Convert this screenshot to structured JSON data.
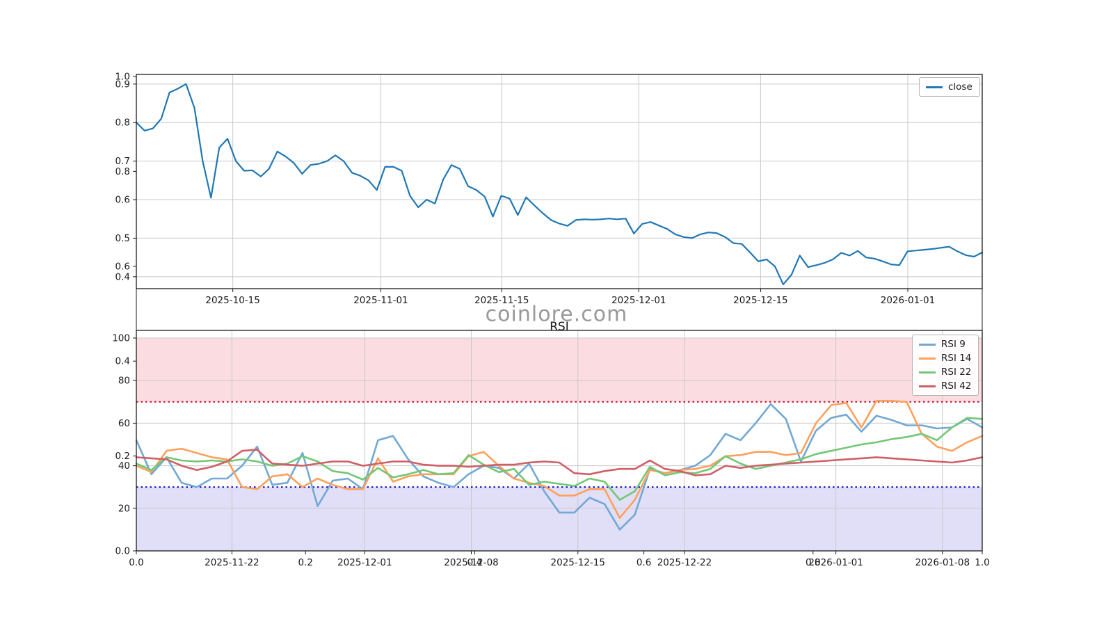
{
  "watermark": "coinlore.com",
  "panels": {
    "price": {
      "legend": [
        {
          "label": "close",
          "color": "#1f77b4"
        }
      ],
      "y_ticks": [
        {
          "label": "0.9",
          "v": 0.9
        },
        {
          "label": "0.8",
          "v": 0.8
        },
        {
          "label": "0.7",
          "v": 0.7
        },
        {
          "label": "0.6",
          "v": 0.6
        },
        {
          "label": "0.5",
          "v": 0.5
        },
        {
          "label": "0.4",
          "v": 0.4
        }
      ],
      "x_ticks": [
        {
          "label": "2025-10-15",
          "f": 0.114
        },
        {
          "label": "2025-11-01",
          "f": 0.289
        },
        {
          "label": "2025-11-15",
          "f": 0.432
        },
        {
          "label": "2025-12-01",
          "f": 0.594
        },
        {
          "label": "2025-12-15",
          "f": 0.738
        },
        {
          "label": "2026-01-01",
          "f": 0.912
        }
      ]
    },
    "rsi": {
      "title": "RSI",
      "legend": [
        {
          "label": "RSI 9",
          "color": "#71a8d4"
        },
        {
          "label": "RSI 14",
          "color": "#ffa05b"
        },
        {
          "label": "RSI 22",
          "color": "#72c775"
        },
        {
          "label": "RSI 42",
          "color": "#cf5f66"
        }
      ],
      "y_ticks": [
        {
          "label": "100",
          "v": 100
        },
        {
          "label": "80",
          "v": 80
        },
        {
          "label": "60",
          "v": 60
        },
        {
          "label": "40",
          "v": 40
        },
        {
          "label": "20",
          "v": 20
        }
      ],
      "x_ticks": [
        {
          "label": "2025-11-22",
          "f": 0.113
        },
        {
          "label": "2025-12-01",
          "f": 0.27
        },
        {
          "label": "2025-12-08",
          "f": 0.396
        },
        {
          "label": "2025-12-15",
          "f": 0.522
        },
        {
          "label": "2025-12-22",
          "f": 0.648
        },
        {
          "label": "2026-01-01",
          "f": 0.827
        },
        {
          "label": "2026-01-08",
          "f": 0.953
        }
      ]
    },
    "overlay": {
      "y_ticks": [
        "1.0",
        "0.8",
        "0.6",
        "0.4",
        "0.2",
        "0.0"
      ],
      "x_ticks": [
        "0.0",
        "0.2",
        "0.4",
        "0.6",
        "0.8",
        "1.0"
      ]
    }
  },
  "chart_data": [
    {
      "type": "line",
      "panel": "price",
      "ylabel": "",
      "ylim": [
        0.369,
        0.925
      ],
      "grid": true,
      "legend_position": "upper right",
      "series": [
        {
          "name": "close",
          "color": "#1f77b4",
          "width": 2.2,
          "values": [
            0.8,
            0.779,
            0.785,
            0.81,
            0.878,
            0.888,
            0.9,
            0.838,
            0.7,
            0.605,
            0.735,
            0.758,
            0.7,
            0.675,
            0.676,
            0.66,
            0.68,
            0.725,
            0.712,
            0.695,
            0.667,
            0.69,
            0.693,
            0.7,
            0.715,
            0.7,
            0.67,
            0.662,
            0.65,
            0.625,
            0.685,
            0.685,
            0.675,
            0.61,
            0.58,
            0.6,
            0.59,
            0.652,
            0.69,
            0.68,
            0.635,
            0.625,
            0.608,
            0.556,
            0.61,
            0.603,
            0.56,
            0.606,
            0.585,
            0.565,
            0.547,
            0.538,
            0.532,
            0.547,
            0.549,
            0.548,
            0.549,
            0.551,
            0.549,
            0.551,
            0.512,
            0.537,
            0.542,
            0.533,
            0.524,
            0.51,
            0.503,
            0.5,
            0.51,
            0.515,
            0.513,
            0.503,
            0.487,
            0.485,
            0.463,
            0.44,
            0.445,
            0.427,
            0.38,
            0.405,
            0.455,
            0.425,
            0.43,
            0.436,
            0.445,
            0.462,
            0.455,
            0.467,
            0.45,
            0.447,
            0.44,
            0.432,
            0.43,
            0.466,
            0.468,
            0.47,
            0.472,
            0.475,
            0.478,
            0.466,
            0.456,
            0.452,
            0.463
          ]
        }
      ]
    },
    {
      "type": "line",
      "panel": "rsi",
      "title": "RSI",
      "ylim": [
        0,
        103.6
      ],
      "grid": true,
      "legend_position": "upper right",
      "bands": [
        {
          "from": 70,
          "to": 100,
          "color": "#fbdce0"
        },
        {
          "from": 0,
          "to": 30,
          "color": "#e0dff7"
        }
      ],
      "hlines": [
        {
          "v": 70,
          "color": "#cc0022",
          "style": "dotted"
        },
        {
          "v": 30,
          "color": "#0000cc",
          "style": "dotted"
        }
      ],
      "series": [
        {
          "name": "RSI 9",
          "color": "#71a8d4",
          "width": 2.6,
          "values": [
            52,
            36,
            44,
            32,
            30,
            34,
            34,
            40,
            49,
            31,
            32,
            46,
            21,
            33,
            34,
            29,
            52,
            54,
            43,
            35,
            32,
            30,
            36,
            40,
            39,
            34,
            41,
            28,
            18,
            18,
            25,
            22,
            10,
            17,
            38.5,
            36.5,
            38,
            40,
            45,
            55,
            52,
            60,
            69,
            62,
            42,
            56.5,
            62.5,
            64,
            56,
            63.5,
            61.5,
            59,
            59,
            57.5,
            58,
            62,
            58
          ]
        },
        {
          "name": "RSI 14",
          "color": "#ffa05b",
          "width": 2.6,
          "values": [
            40,
            37,
            47,
            48,
            46,
            44,
            43,
            30,
            29,
            35,
            36,
            30,
            34,
            31,
            29,
            29,
            43.5,
            32.5,
            35,
            36,
            36,
            36,
            44.5,
            46.5,
            40,
            34,
            32,
            30.5,
            26,
            26,
            29,
            29,
            15.5,
            24,
            38,
            36.5,
            38,
            38.5,
            40,
            44.5,
            45,
            46.5,
            46.5,
            45,
            46,
            60,
            68.5,
            69.5,
            58,
            70.5,
            70.5,
            70,
            55,
            49,
            47,
            51,
            54
          ]
        },
        {
          "name": "RSI 22",
          "color": "#72c775",
          "width": 2.6,
          "values": [
            41,
            38,
            44,
            42.5,
            42,
            42.5,
            42,
            43,
            42,
            40,
            41,
            44.5,
            42,
            37.5,
            36.5,
            33.5,
            39,
            34.5,
            36,
            38,
            36,
            36.5,
            45,
            40.5,
            37,
            38.5,
            31,
            32.5,
            31.5,
            30.5,
            34,
            32.5,
            24,
            28,
            39.5,
            35.5,
            37,
            36.5,
            38.5,
            44.5,
            41,
            38.5,
            40,
            41.5,
            43,
            45.5,
            47,
            48.5,
            50,
            51,
            52.5,
            53.5,
            55,
            52,
            58,
            62.5,
            62
          ]
        },
        {
          "name": "RSI 42",
          "color": "#cf5f66",
          "width": 2.6,
          "values": [
            44,
            43.5,
            43,
            40,
            38,
            39.5,
            42,
            47,
            47.5,
            41,
            40.5,
            40,
            41,
            42,
            42,
            40,
            41,
            42,
            42,
            40.5,
            40,
            40,
            39.5,
            40,
            40.5,
            40.5,
            41.5,
            42,
            41.5,
            36.5,
            36,
            37.5,
            38.5,
            38.5,
            42.5,
            38.5,
            37.5,
            35.5,
            36,
            40,
            39,
            40,
            40.5,
            41,
            41.5,
            42,
            42.5,
            43,
            43.5,
            44,
            43.5,
            43,
            42.5,
            42,
            41.5,
            42.5,
            44
          ]
        }
      ]
    }
  ]
}
